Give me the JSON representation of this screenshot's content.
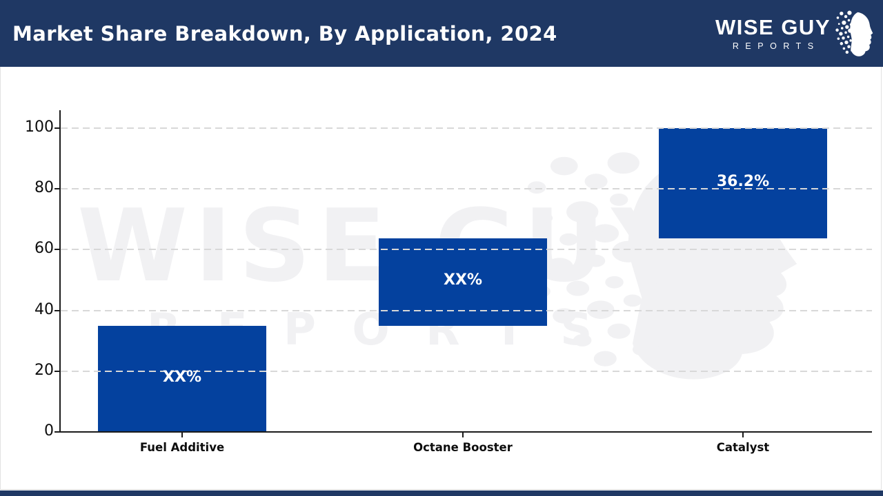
{
  "header": {
    "title": "Market Share Breakdown, By Application, 2024",
    "logo": {
      "line1": "WISE GUY",
      "line2": "REPORTS"
    }
  },
  "watermark": {
    "line1": "WISE GUY",
    "line2": "REPORTS"
  },
  "chart_data": {
    "type": "bar",
    "variant": "floating-waterfall",
    "title": "Market Share Breakdown, By Application, 2024",
    "categories": [
      "Fuel Additive",
      "Octane Booster",
      "Catalyst"
    ],
    "segments": [
      {
        "category": "Fuel Additive",
        "start": 0,
        "end": 35,
        "label": "XX%"
      },
      {
        "category": "Octane Booster",
        "start": 35,
        "end": 63.8,
        "label": "XX%"
      },
      {
        "category": "Catalyst",
        "start": 63.8,
        "end": 100,
        "label": "36.2%"
      }
    ],
    "ylim": [
      0,
      100
    ],
    "yticks": [
      0,
      20,
      40,
      60,
      80,
      100
    ],
    "xlabel": "",
    "ylabel": "",
    "grid": "horizontal-dashed",
    "legend": "none",
    "bar_color": "#04419e"
  },
  "colors": {
    "header_navy": "#1f3864",
    "bar_blue": "#04419e",
    "gridline": "#d8d8d8",
    "axis": "#1a1a1a",
    "bar_label_text": "#ffffff",
    "watermark_gray": "#f1f1f3"
  }
}
